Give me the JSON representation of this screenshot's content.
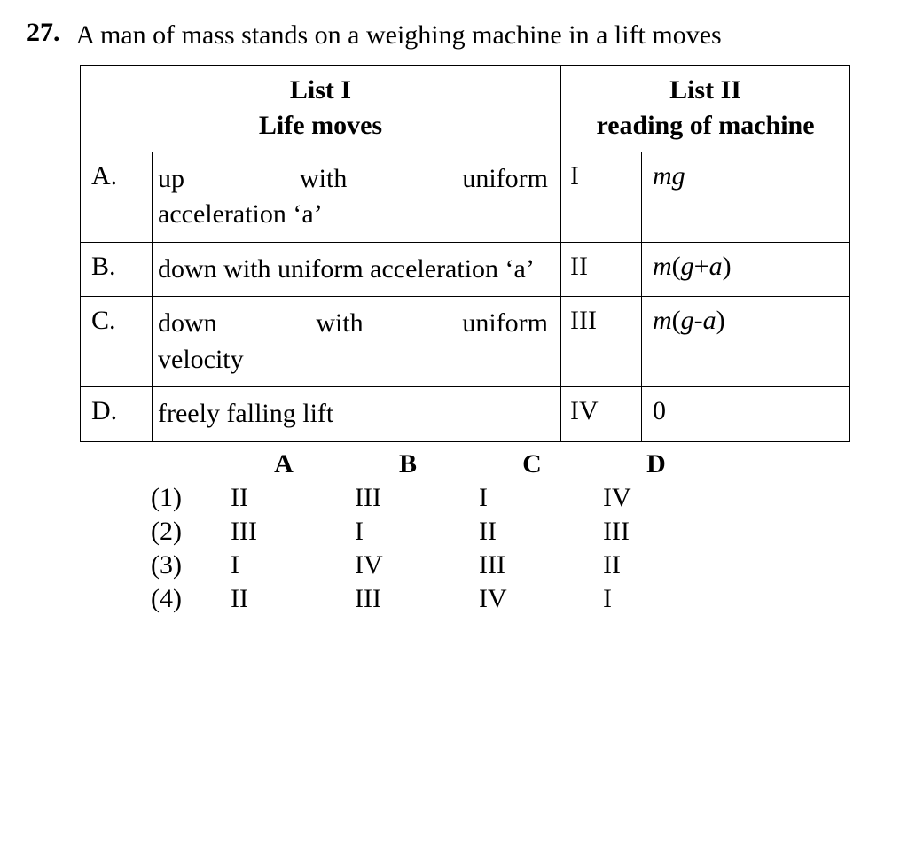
{
  "question": {
    "number": "27.",
    "stem": "A man of mass stands on a weighing machine in a lift moves"
  },
  "table": {
    "header": {
      "list1_title": "List I",
      "list1_sub": "Life moves",
      "list2_title": "List II",
      "list2_sub": "reading of machine"
    },
    "rows": [
      {
        "label": "A.",
        "desc_line1_left": "up",
        "desc_line1_mid": "with",
        "desc_line1_right": "uniform",
        "desc_line2": "acceleration ‘a’",
        "two_line_justified": true,
        "idx": "I",
        "val_html": "mg"
      },
      {
        "label": "B.",
        "desc_plain": "down with uniform acceleration ‘a’",
        "two_line_justified": false,
        "idx": "II",
        "val_html": "m(g+a)"
      },
      {
        "label": "C.",
        "desc_line1_left": "down",
        "desc_line1_mid": "with",
        "desc_line1_right": "uniform",
        "desc_line2": "velocity",
        "two_line_justified": true,
        "idx": "III",
        "val_html": "m(g-a)"
      },
      {
        "label": "D.",
        "desc_plain": "freely falling lift",
        "two_line_justified": false,
        "idx": "IV",
        "val_html": "0"
      }
    ]
  },
  "options": {
    "headers": [
      "A",
      "B",
      "C",
      "D"
    ],
    "rows": [
      {
        "label": "(1)",
        "cells": [
          "II",
          "III",
          "I",
          "IV"
        ]
      },
      {
        "label": "(2)",
        "cells": [
          "III",
          "I",
          "II",
          "III"
        ]
      },
      {
        "label": "(3)",
        "cells": [
          "I",
          "IV",
          "III",
          "II"
        ]
      },
      {
        "label": "(4)",
        "cells": [
          "II",
          "III",
          "IV",
          "I"
        ]
      }
    ]
  },
  "style": {
    "font_family": "Times New Roman",
    "font_size_pt": 22,
    "text_color": "#000000",
    "background_color": "#ffffff",
    "border_color": "#000000"
  }
}
